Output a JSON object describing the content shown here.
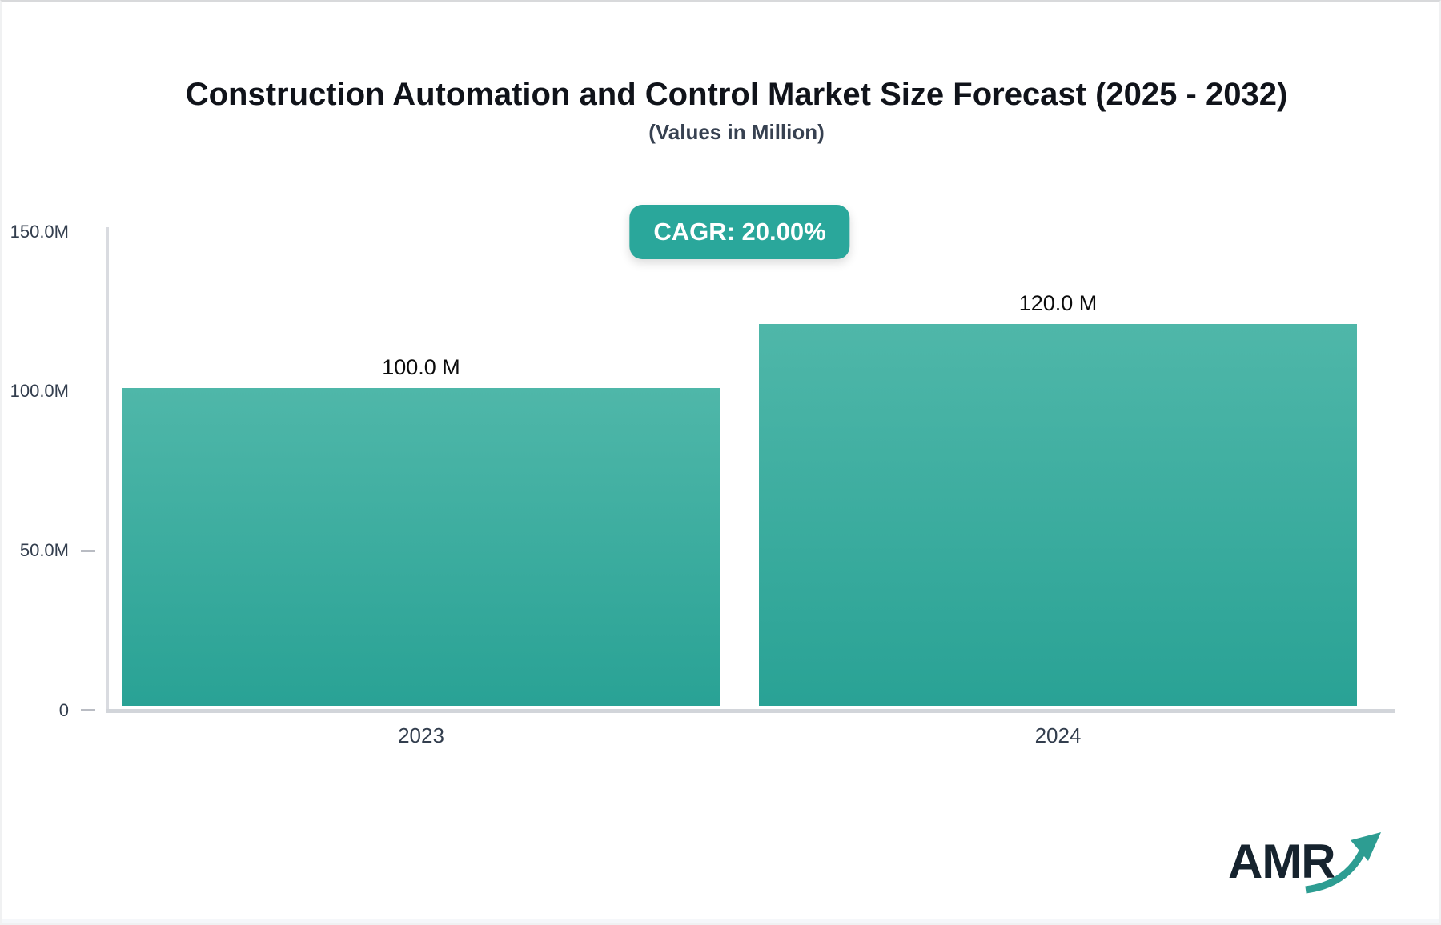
{
  "header": {
    "title": "Construction Automation and Control Market Size Forecast (2025 - 2032)",
    "subtitle": "(Values in Million)",
    "cagr_badge": "CAGR: 20.00%"
  },
  "chart_data": {
    "type": "bar",
    "title": "Construction Automation and Control Market Size Forecast (2025 - 2032)",
    "subtitle": "(Values in Million)",
    "cagr": "20.00%",
    "categories": [
      "2023",
      "2024"
    ],
    "values": [
      100.0,
      120.0
    ],
    "value_labels": [
      "100.0 M",
      "120.0 M"
    ],
    "y_tick_labels": [
      "150.0M",
      "100.0M",
      "50.0M",
      "0"
    ],
    "ylim": [
      0,
      150
    ],
    "ylabel": "",
    "xlabel": "",
    "grid": false,
    "legend": false
  },
  "colors": {
    "accent_teal": "#2aa79b",
    "bar_gradient_top": "#4fb7a9",
    "bar_gradient_bottom": "#29a295",
    "title_text": "#10131a",
    "tick_text": "#333e4e",
    "axis_line": "#d5d7dc"
  },
  "branding": {
    "logo_text": "AMR",
    "logo_arrow_icon": "trending-up-arrow",
    "logo_text_color": "#16232e",
    "logo_arrow_color": "#2d9d92"
  }
}
